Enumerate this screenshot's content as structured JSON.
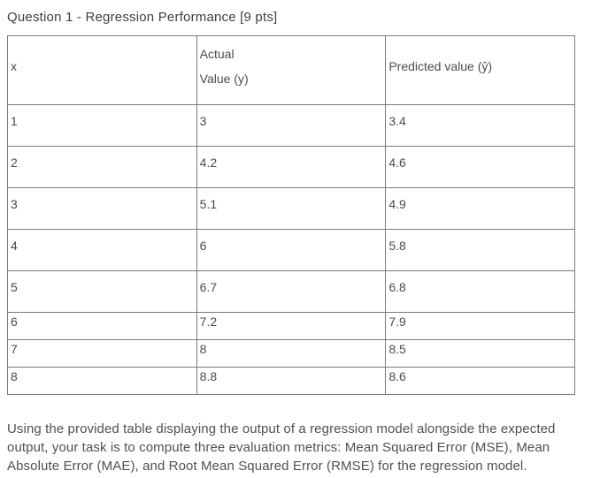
{
  "page": {
    "title": "Question 1 - Regression Performance [9 pts]"
  },
  "table": {
    "headers": {
      "x": "x",
      "actual_line1": "Actual",
      "actual_line2": "Value (y)",
      "predicted": "Predicted value (ŷ)"
    },
    "rows": [
      {
        "x": "1",
        "actual": "3",
        "predicted": "3.4"
      },
      {
        "x": "2",
        "actual": "4.2",
        "predicted": "4.6"
      },
      {
        "x": "3",
        "actual": "5.1",
        "predicted": "4.9"
      },
      {
        "x": "4",
        "actual": "6",
        "predicted": "5.8"
      },
      {
        "x": "5",
        "actual": "6.7",
        "predicted": "6.8"
      },
      {
        "x": "6",
        "actual": "7.2",
        "predicted": "7.9"
      },
      {
        "x": "7",
        "actual": "8",
        "predicted": "8.5"
      },
      {
        "x": "8",
        "actual": "8.8",
        "predicted": "8.6"
      }
    ]
  },
  "instructions": {
    "text": "Using the provided table displaying the output of a regression model alongside the expected output, your task is to compute three evaluation metrics: Mean Squared Error (MSE), Mean Absolute Error (MAE), and Root Mean Squared Error (RMSE) for the regression model."
  },
  "colors": {
    "text": "#4b4a52",
    "title_text": "#3e3d45",
    "border": "#7b7b7b",
    "background": "#ffffff"
  }
}
